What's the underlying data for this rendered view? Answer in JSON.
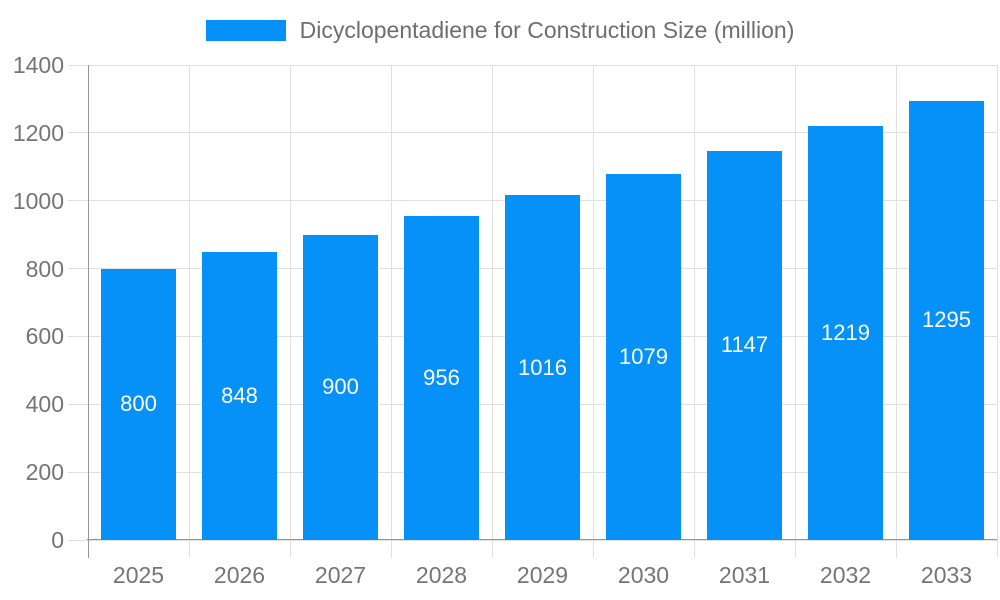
{
  "legend": {
    "series_label": "Dicyclopentadiene for Construction Size (million)",
    "swatch_color": "#0591F8"
  },
  "chart_data": {
    "type": "bar",
    "title": "Dicyclopentadiene for Construction Size (million)",
    "categories": [
      "2025",
      "2026",
      "2027",
      "2028",
      "2029",
      "2030",
      "2031",
      "2032",
      "2033"
    ],
    "values": [
      800,
      848,
      900,
      956,
      1016,
      1079,
      1147,
      1219,
      1295
    ],
    "xlabel": "",
    "ylabel": "",
    "ylim": [
      0,
      1400
    ],
    "yticks": [
      0,
      200,
      400,
      600,
      800,
      1000,
      1200,
      1400
    ],
    "grid": true,
    "legend_position": "top-center",
    "bar_color": "#0591F8",
    "value_label_color": "#ffffff",
    "axis_line_color": "#959595",
    "grid_color": "#e0e0e0",
    "tick_text_color": "#757575",
    "legend_text_color": "#6e6e6e",
    "background_color": "#ffffff"
  }
}
